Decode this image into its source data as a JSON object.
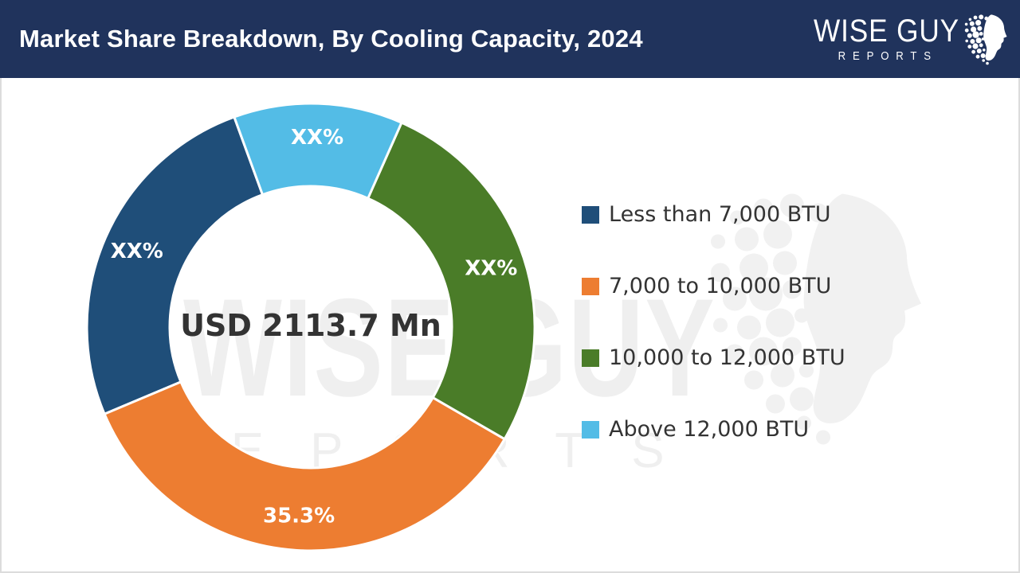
{
  "header": {
    "title": "Market Share Breakdown, By Cooling Capacity, 2024",
    "bg_color": "#20335c",
    "logo": {
      "line1": "WISE GUY",
      "line2": "REPORTS"
    }
  },
  "watermark": {
    "line1": "WISE GUY",
    "line2": "REPORTS"
  },
  "chart_data": {
    "type": "pie",
    "subtype": "donut",
    "title": "Market Share Breakdown, By Cooling Capacity, 2024",
    "center_label": "USD 2113.7 Mn",
    "unit": "%",
    "start_angle_deg": 110,
    "direction": "counterclockwise",
    "inner_radius_ratio": 0.63,
    "legend_position": "right",
    "segments": [
      {
        "label": "Less than 7,000 BTU",
        "display_label": "XX%",
        "value": 25.8,
        "color": "#1f4e79"
      },
      {
        "label": "7,000 to 10,000 BTU",
        "display_label": "35.3%",
        "value": 35.3,
        "color": "#ed7d31"
      },
      {
        "label": "10,000 to 12,000 BTU",
        "display_label": "XX%",
        "value": 26.7,
        "color": "#4a7c28"
      },
      {
        "label": "Above 12,000 BTU",
        "display_label": "XX%",
        "value": 12.2,
        "color": "#53bce6"
      }
    ]
  }
}
